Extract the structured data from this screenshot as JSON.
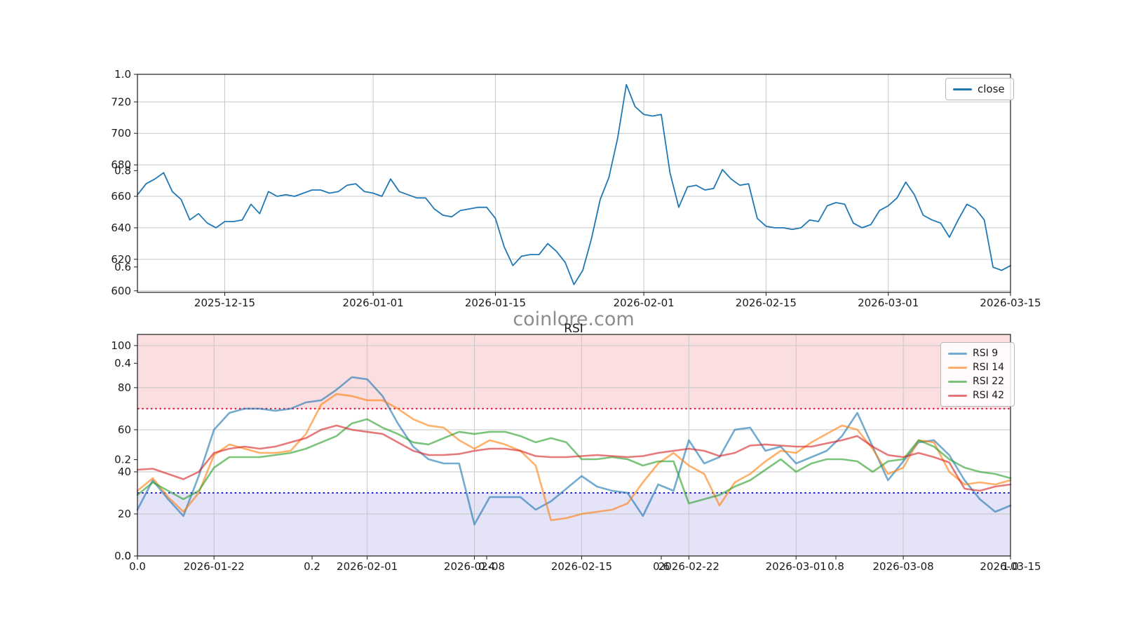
{
  "watermark": "coinlore.com",
  "overlay_axis": {
    "x_tick_labels": [
      "0.0",
      "0.2",
      "0.4",
      "0.6",
      "0.8",
      "1.0"
    ],
    "y_tick_labels": [
      "1.0",
      "0.8",
      "0.6",
      "0.4",
      "0.2",
      "0.0"
    ]
  },
  "chart_data": [
    {
      "type": "line",
      "panel": "price",
      "title": "",
      "grid": true,
      "legend_position": "upper right",
      "x_start": "2025-12-05",
      "x_end": "2026-03-15",
      "x_frequency": "daily",
      "x_tick_labels": [
        "2025-12-15",
        "2026-01-01",
        "2026-01-15",
        "2026-02-01",
        "2026-02-15",
        "2026-03-01",
        "2026-03-15"
      ],
      "x_tick_day_index": [
        10,
        27,
        41,
        58,
        72,
        86,
        100
      ],
      "y_ticks": [
        600,
        620,
        640,
        660,
        680,
        700,
        720
      ],
      "ylim": [
        599,
        737.5
      ],
      "series": [
        {
          "name": "close",
          "color": "#1f77b4",
          "opacity": 1,
          "width": 1.8,
          "values": [
            661,
            668,
            671,
            675,
            663,
            658,
            645,
            649,
            643,
            640,
            644,
            644,
            645,
            655,
            649,
            663,
            660,
            661,
            660,
            662,
            664,
            664,
            662,
            663,
            667,
            668,
            663,
            662,
            660,
            671,
            663,
            661,
            659,
            659,
            652,
            648,
            647,
            651,
            652,
            653,
            653,
            646,
            628,
            616,
            622,
            623,
            623,
            630,
            625,
            618,
            604,
            613,
            633,
            658,
            672,
            697,
            731,
            717,
            712,
            711,
            712,
            675,
            653,
            666,
            667,
            664,
            665,
            677,
            671,
            667,
            668,
            646,
            641,
            640,
            640,
            639,
            640,
            645,
            644,
            654,
            656,
            655,
            643,
            640,
            642,
            651,
            654,
            659,
            669,
            661,
            648,
            645,
            643,
            634,
            645,
            655,
            652,
            645,
            615,
            613,
            616
          ]
        }
      ]
    },
    {
      "type": "line",
      "panel": "rsi",
      "title": "RSI",
      "grid": true,
      "legend_position": "upper right",
      "x_start": "2026-01-17",
      "x_end": "2026-03-15",
      "x_frequency": "daily",
      "x_tick_labels": [
        "2026-01-22",
        "2026-02-01",
        "2026-02-08",
        "2026-02-15",
        "2026-02-22",
        "2026-03-01",
        "2026-03-08",
        "2026-03-15"
      ],
      "x_tick_day_index": [
        5,
        15,
        22,
        29,
        36,
        43,
        50,
        57
      ],
      "y_ticks": [
        0,
        20,
        40,
        60,
        80,
        100
      ],
      "ylim": [
        0,
        105.3
      ],
      "hlines": [
        {
          "value": 70,
          "color": "#dc143c",
          "style": "dotted",
          "name": "overbought-line"
        },
        {
          "value": 30,
          "color": "#2020cd",
          "style": "dotted",
          "name": "oversold-line"
        }
      ],
      "bands": [
        {
          "from": 70,
          "to": 105.3,
          "color": "#fbdee0",
          "name": "overbought-band"
        },
        {
          "from": 0,
          "to": 30,
          "color": "#e4e3f7",
          "name": "oversold-band"
        }
      ],
      "series": [
        {
          "name": "RSI 9",
          "color": "#1f77b4",
          "opacity": 0.62,
          "width": 2.6,
          "values": [
            22,
            36,
            27,
            19,
            38,
            60,
            68,
            70,
            70,
            69,
            70,
            73,
            74,
            79,
            85,
            84,
            76,
            63,
            52,
            46,
            44,
            44,
            15,
            28,
            28,
            28,
            22,
            26,
            32,
            38,
            33,
            31,
            30,
            19,
            34,
            31,
            55,
            44,
            47,
            60,
            61,
            50,
            52,
            44,
            47,
            50,
            57,
            68,
            52,
            36,
            45,
            54,
            55,
            48,
            36,
            27,
            21,
            24
          ]
        },
        {
          "name": "RSI 14",
          "color": "#ff7f0e",
          "opacity": 0.62,
          "width": 2.6,
          "values": [
            31,
            37,
            28,
            21,
            30,
            48,
            53,
            51,
            49,
            49,
            50,
            58,
            72,
            77,
            76,
            74,
            74,
            70,
            65,
            62,
            61,
            55,
            51,
            55,
            53,
            50,
            43,
            17,
            18,
            20,
            21,
            22,
            25,
            35,
            44,
            49,
            43,
            39,
            24,
            35,
            39,
            45,
            50,
            49,
            54,
            58,
            62,
            60,
            51,
            39,
            42,
            55,
            54,
            40,
            34,
            35,
            34,
            36
          ]
        },
        {
          "name": "RSI 22",
          "color": "#2ca02c",
          "opacity": 0.62,
          "width": 2.6,
          "values": [
            29,
            35,
            31,
            27,
            31,
            42,
            47,
            47,
            47,
            48,
            49,
            51,
            54,
            57,
            63,
            65,
            61,
            58,
            54,
            53,
            56,
            59,
            58,
            59,
            59,
            57,
            54,
            56,
            54,
            46,
            46,
            47,
            46,
            43,
            45,
            45,
            25,
            27,
            29,
            33,
            36,
            41,
            46,
            40,
            44,
            46,
            46,
            45,
            40,
            45,
            46,
            55,
            52,
            46,
            42,
            40,
            39,
            37
          ]
        },
        {
          "name": "RSI 42",
          "color": "#d62728",
          "opacity": 0.62,
          "width": 2.6,
          "values": [
            41,
            41.5,
            39,
            36.5,
            40,
            49,
            51,
            52,
            51,
            52,
            54,
            56,
            60,
            62,
            60,
            59,
            58,
            54,
            50,
            48,
            48,
            48.5,
            50,
            51,
            51,
            50,
            47.5,
            47,
            47,
            47.5,
            48,
            47.5,
            47,
            47.5,
            49,
            50,
            51,
            50,
            47.5,
            49,
            52.5,
            53,
            52.5,
            52,
            52,
            53.5,
            55,
            57,
            52,
            48,
            47,
            49,
            47,
            44.5,
            32,
            31,
            33,
            34
          ]
        }
      ]
    }
  ]
}
